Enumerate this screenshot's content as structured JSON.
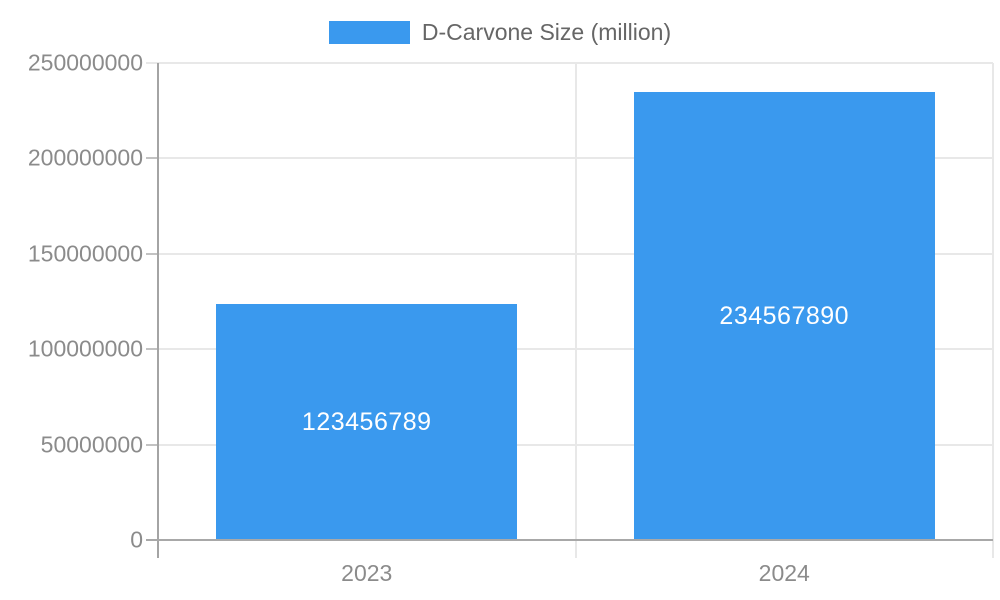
{
  "chart_data": {
    "type": "bar",
    "title": "D-Carvone Size (million)",
    "legend_position": "top",
    "categories": [
      "2023",
      "2024"
    ],
    "values": [
      123456789,
      234567890
    ],
    "data_labels": [
      "123456789",
      "234567890"
    ],
    "series": [
      {
        "name": "D-Carvone Size (million)",
        "values": [
          123456789,
          234567890
        ]
      }
    ],
    "xlabel": "",
    "ylabel": "",
    "ylim": [
      0,
      250000000
    ],
    "yticks": [
      "250000000",
      "200000000",
      "150000000",
      "100000000",
      "50000000",
      "0"
    ],
    "grid": true,
    "colors": {
      "bar": "#3a99ee",
      "data_label": "#ffffff",
      "axis_text": "#8b8b8b",
      "legend_text": "#666666",
      "gridline": "#e8e8e8",
      "axis_line": "#a4a4a4"
    }
  }
}
